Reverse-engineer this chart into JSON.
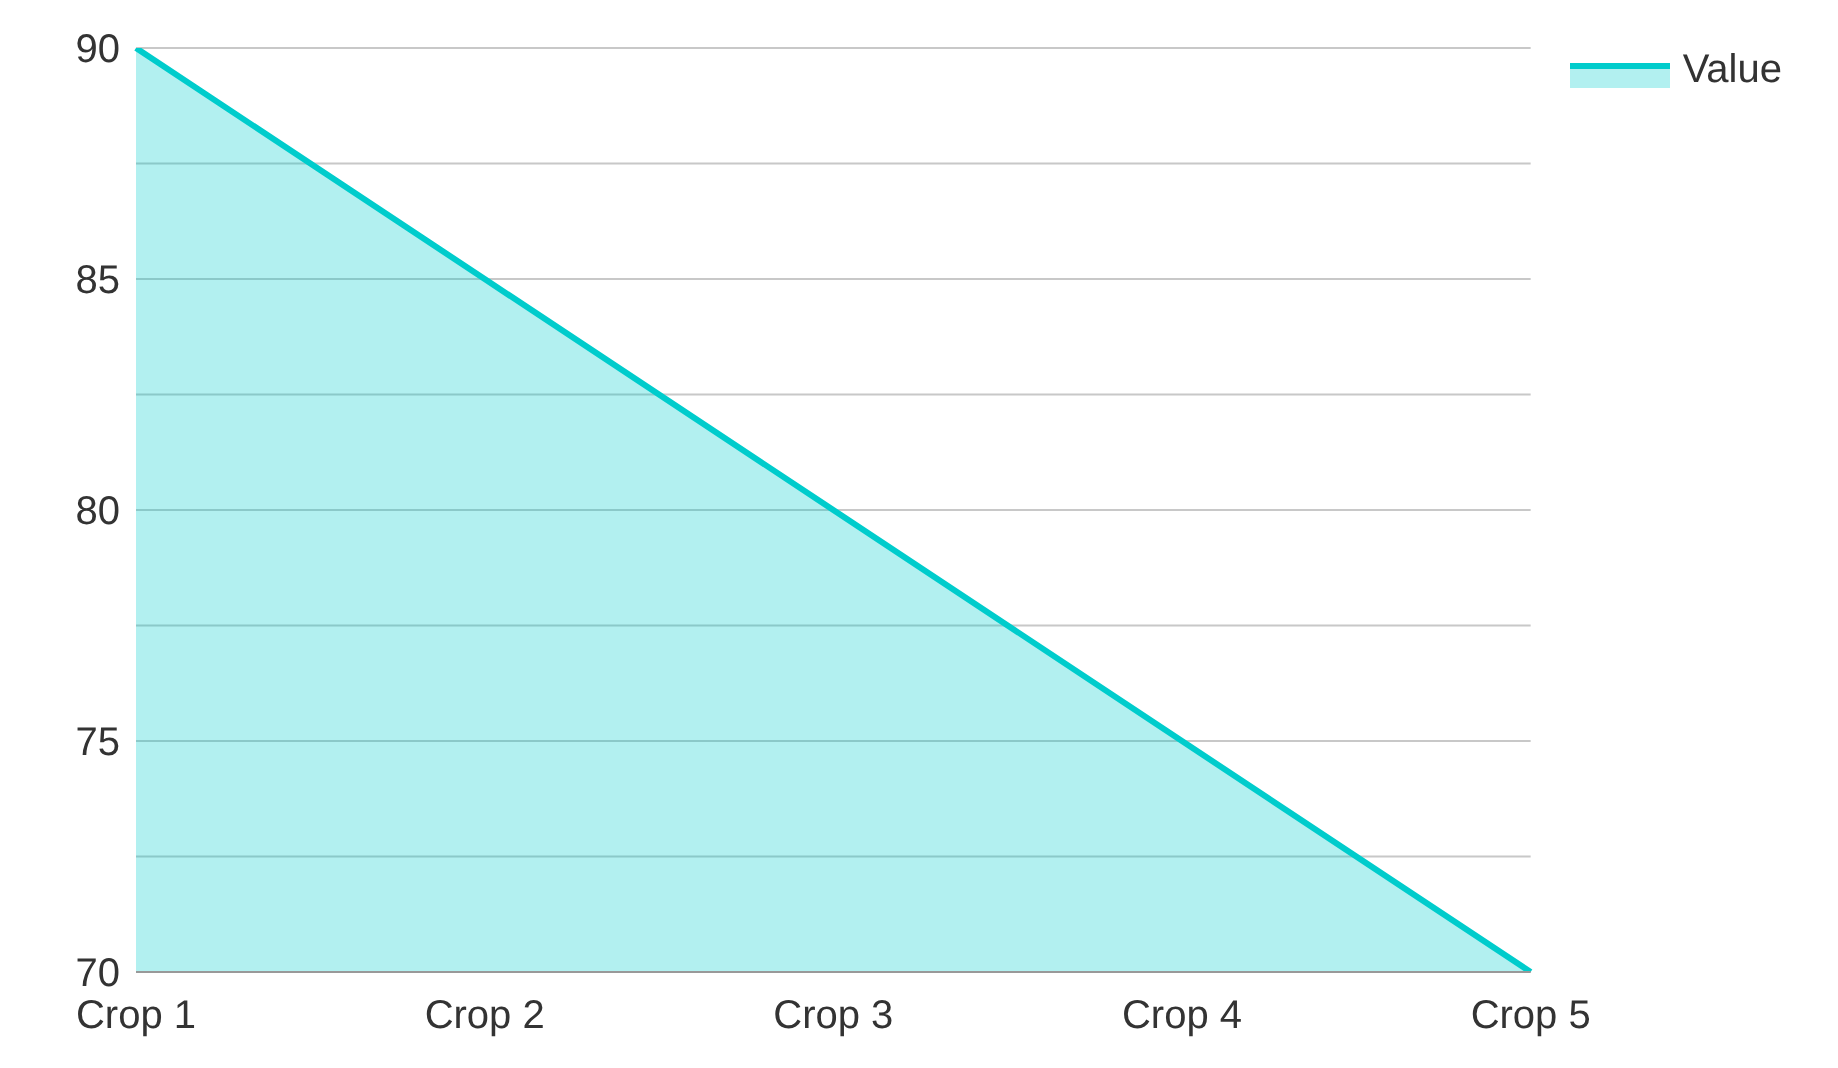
{
  "chart_data": {
    "type": "area",
    "categories": [
      "Crop 1",
      "Crop 2",
      "Crop 3",
      "Crop 4",
      "Crop 5"
    ],
    "series": [
      {
        "name": "Value",
        "color": "#00cccc",
        "values": [
          90,
          85,
          80,
          75,
          70
        ]
      }
    ],
    "ylim": [
      70,
      90
    ],
    "yticks": [
      70,
      {
        "value": 72.5,
        "label": null
      },
      75,
      {
        "value": 77.5,
        "label": null
      },
      80,
      {
        "value": 82.5,
        "label": null
      },
      85,
      {
        "value": 87.5,
        "label": null
      },
      90
    ],
    "grid": "y",
    "legend": "top right"
  }
}
